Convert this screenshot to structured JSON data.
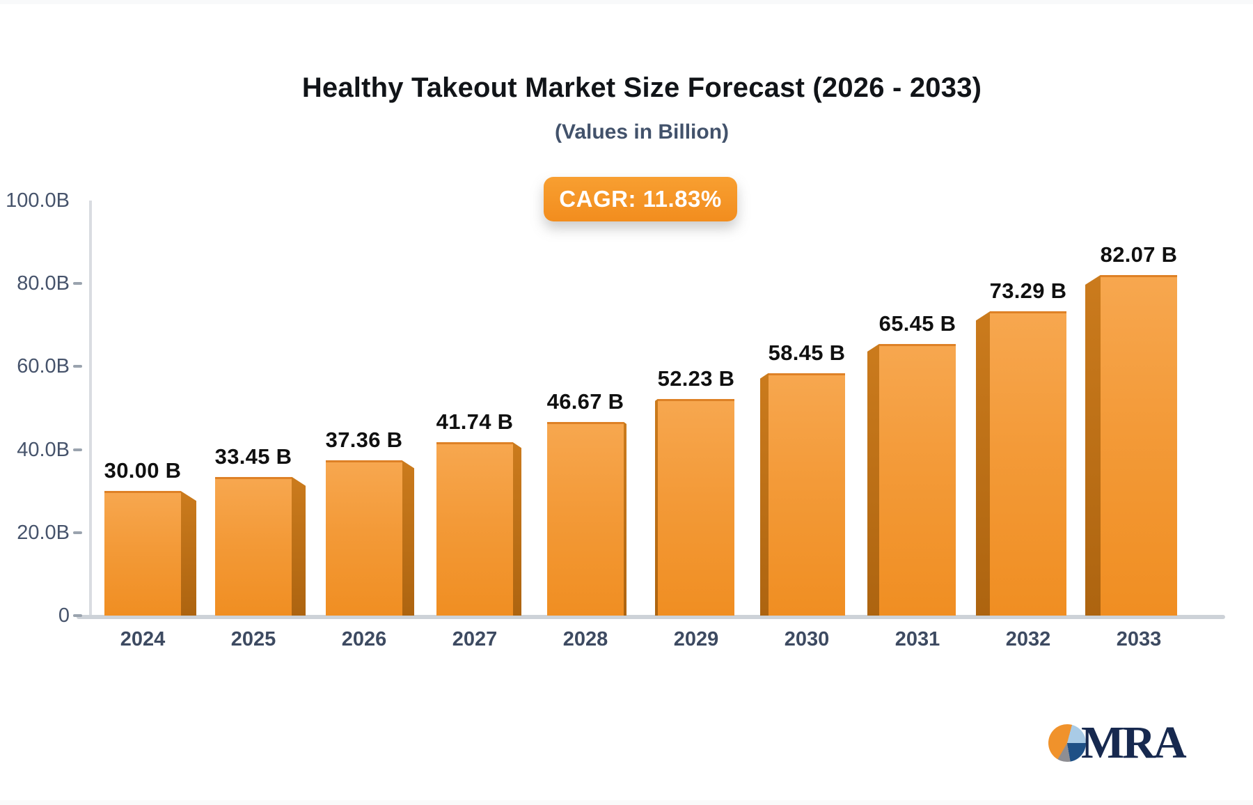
{
  "header": {
    "title": "Healthy Takeout Market Size Forecast (2026 - 2033)",
    "subtitle": "(Values in Billion)",
    "cagr_badge": "CAGR: 11.83%"
  },
  "chart_data": {
    "type": "bar",
    "title": "Healthy Takeout Market Size Forecast (2026 - 2033)",
    "subtitle": "(Values in Billion)",
    "badge_label": "CAGR: 11.83%",
    "categories": [
      "2024",
      "2025",
      "2026",
      "2027",
      "2028",
      "2029",
      "2030",
      "2031",
      "2032",
      "2033"
    ],
    "values": [
      30.0,
      33.45,
      37.36,
      41.74,
      46.67,
      52.23,
      58.45,
      65.45,
      73.29,
      82.07
    ],
    "value_labels": [
      "30.00 B",
      "33.45 B",
      "37.36 B",
      "41.74 B",
      "46.67 B",
      "52.23 B",
      "58.45 B",
      "65.45 B",
      "73.29 B",
      "82.07 B"
    ],
    "xlabel": "",
    "ylabel": "",
    "ylim": [
      0,
      100
    ],
    "ytick_labels": [
      "100.0B",
      "80.0B",
      "60.0B",
      "40.0B",
      "20.0B",
      "0"
    ],
    "ytick_values": [
      100,
      80,
      60,
      40,
      20,
      0
    ],
    "grid": false,
    "legend_position": "none",
    "bar_style": "3d-extruded-center-perspective",
    "colors": {
      "bar_face_top": "#F7A74F",
      "bar_face_bottom": "#F08E22",
      "bar_edge": "#DE8126",
      "bar_side_top": "#CB7B1D",
      "bar_side_bottom": "#AD6410",
      "badge_bg": "#F4941F",
      "badge_text": "#FFFFFF",
      "axis_line": "#D9DCE1",
      "baseline": "#CDD2D8",
      "ytick_text": "#46536B",
      "year_text": "#3D4A61",
      "value_text": "#101010",
      "title_text": "#111418",
      "subtitle_text": "#42526B"
    }
  },
  "footer": {
    "logo_text": "MRA",
    "logo_colors": {
      "orange": "#F0922B",
      "light_blue": "#A9CBE6",
      "dark_blue": "#1E5086",
      "gray": "#8E8E93",
      "text_navy": "#17294F"
    }
  }
}
